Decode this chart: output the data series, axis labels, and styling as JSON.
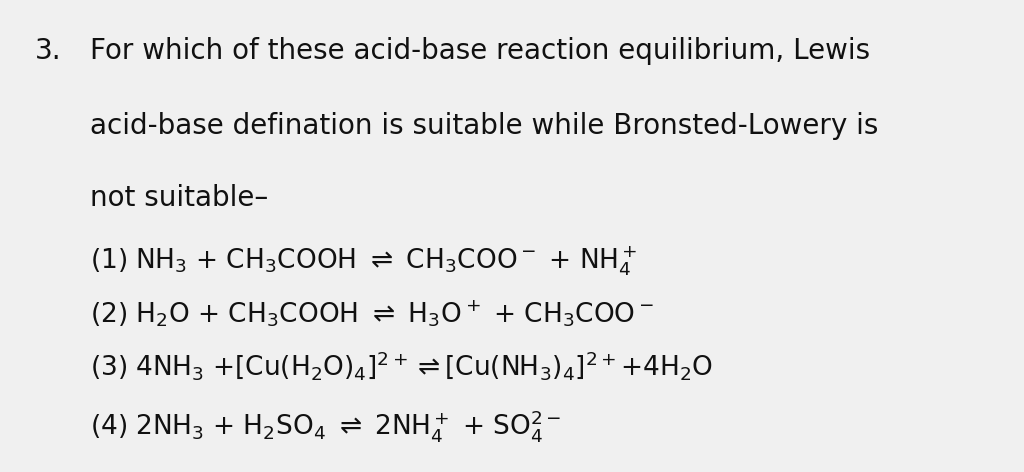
{
  "background_color": "#f0f0f0",
  "text_color": "#111111",
  "q_num": "3.",
  "line1": "For which of these acid-base reaction equilibrium, Lewis",
  "line2": "acid-base defination is suitable while Bronsted-Lowery is",
  "line3": "not suitable–",
  "r1": "(1) NH$_3$ + CH$_3$COOH $\\rightleftharpoons$ CH$_3$COO$^-$ + NH$^+_4$",
  "r2": "(2) H$_2$O + CH$_3$COOH $\\rightleftharpoons$ H$_3$O$^+$ + CH$_3$COO$^-$",
  "r3": "(3) 4NH$_3$ +[Cu(H$_2$O)$_4$]$^{2+}$$\\rightleftharpoons$[Cu(NH$_3$)$_4$]$^{2+}$+4H$_2$O",
  "r4": "(4) 2NH$_3$ + H$_2$SO$_4$ $\\rightleftharpoons$ 2NH$^+_4$ + SO$^{2-}_4$",
  "font_size_main": 20,
  "font_size_reaction": 19,
  "fig_width": 10.24,
  "fig_height": 4.72
}
